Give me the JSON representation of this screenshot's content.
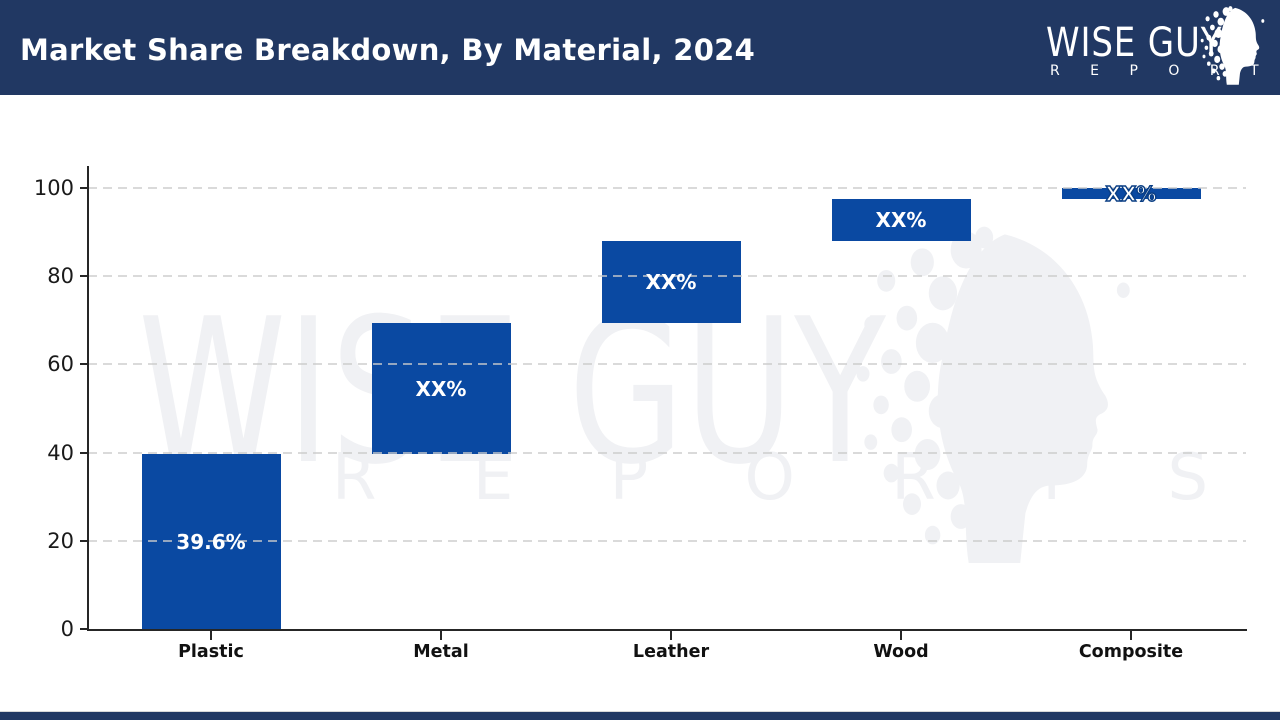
{
  "header": {
    "title": "Market Share Breakdown, By Material, 2024",
    "logo": {
      "wordmark": "WISE GUY",
      "wordmark_sub": "R E P O R T S",
      "icon": "dotted-face-profile-icon"
    }
  },
  "watermark": {
    "wordmark": "WISE GUY",
    "wordmark_sub": "R E P O R T S",
    "icon": "dotted-face-profile-icon"
  },
  "chart_data": {
    "type": "bar",
    "variant": "waterfall",
    "title": "Market Share Breakdown, By Material, 2024",
    "xlabel": "",
    "ylabel": "",
    "categories": [
      "Plastic",
      "Metal",
      "Leather",
      "Wood",
      "Composite"
    ],
    "segments": [
      {
        "category": "Plastic",
        "start": 0,
        "end": 39.6,
        "label": "39.6%"
      },
      {
        "category": "Metal",
        "start": 39.6,
        "end": 69.3,
        "label": "XX%"
      },
      {
        "category": "Leather",
        "start": 69.3,
        "end": 88.0,
        "label": "XX%"
      },
      {
        "category": "Wood",
        "start": 88.0,
        "end": 97.5,
        "label": "XX%"
      },
      {
        "category": "Composite",
        "start": 97.5,
        "end": 100.0,
        "label": "XX%"
      }
    ],
    "yticks": [
      0,
      20,
      40,
      60,
      80,
      100
    ],
    "ylim": [
      0,
      105
    ],
    "grid": {
      "horizontal": true,
      "style": "dashed",
      "drawn_over_bars": true
    },
    "legend": "none",
    "bar_color": "#0a49a2",
    "bar_label_color": "#ffffff"
  },
  "colors": {
    "header_bg": "#213863",
    "footer_bg": "#213863",
    "title_text": "#ffffff",
    "bar": "#0a49a2",
    "bar_label": "#ffffff",
    "watermark": "#f0f1f4",
    "grid": "#d8d8d8",
    "axis": "#262626",
    "tick_label": "#1a1a1a"
  }
}
